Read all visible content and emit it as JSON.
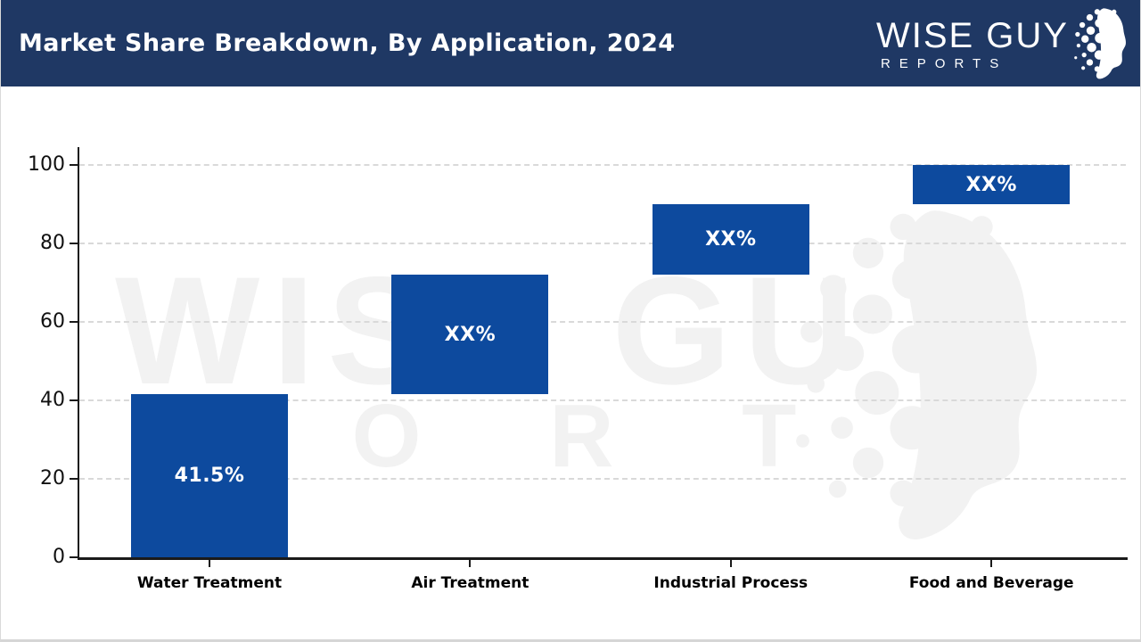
{
  "header": {
    "title": "Market Share Breakdown, By Application, 2024",
    "bg_color": "#1f3864",
    "logo": {
      "line1": "WISE GUY",
      "line2": "REPORTS"
    }
  },
  "watermark": {
    "line1": "WISE GU",
    "line2": "P O R T S"
  },
  "chart_data": {
    "type": "bar",
    "variant": "waterfall",
    "title": "Market Share Breakdown, By Application, 2024",
    "categories": [
      "Water Treatment",
      "Air Treatment",
      "Industrial Process",
      "Food and Beverage"
    ],
    "segments": [
      {
        "category": "Water Treatment",
        "start": 0,
        "end": 41.5,
        "label": "41.5%"
      },
      {
        "category": "Air Treatment",
        "start": 41.5,
        "end": 72,
        "label": "XX%"
      },
      {
        "category": "Industrial Process",
        "start": 72,
        "end": 90,
        "label": "XX%"
      },
      {
        "category": "Food and Beverage",
        "start": 90,
        "end": 100,
        "label": "XX%"
      }
    ],
    "yticks": [
      0,
      20,
      40,
      60,
      80,
      100
    ],
    "ylim": [
      0,
      104
    ],
    "xlabel": "",
    "ylabel": "",
    "bar_color": "#0d4a9e",
    "bar_label_color": "#ffffff",
    "grid": {
      "axis": "y",
      "style": "dashed",
      "color": "#d9d9d9"
    },
    "legend": "none"
  }
}
